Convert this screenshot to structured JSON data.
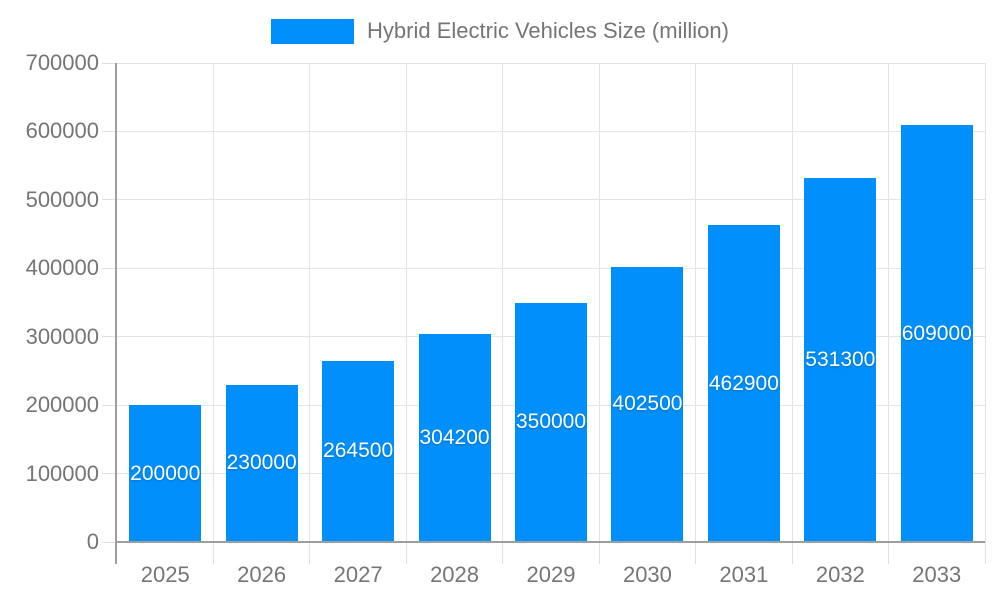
{
  "legend": {
    "label": "Hybrid Electric Vehicles Size (million)"
  },
  "chart_data": {
    "type": "bar",
    "title": "Hybrid Electric Vehicles Size (million)",
    "xlabel": "",
    "ylabel": "",
    "categories": [
      "2025",
      "2026",
      "2027",
      "2028",
      "2029",
      "2030",
      "2031",
      "2032",
      "2033"
    ],
    "values": [
      200000,
      230000,
      264500,
      304200,
      350000,
      402500,
      462900,
      531300,
      609000
    ],
    "value_labels": [
      "200000",
      "230000",
      "264500",
      "304200",
      "350000",
      "402500",
      "462900",
      "531300",
      "609000"
    ],
    "ylim": [
      0,
      700000
    ],
    "ytick_interval": 100000,
    "ytick_labels": [
      "0",
      "100000",
      "200000",
      "300000",
      "400000",
      "500000",
      "600000",
      "700000"
    ],
    "grid": true,
    "legend_position": "top",
    "colors": {
      "bar": "#008FFB",
      "value_label_text": "#ffffff",
      "axis_text": "#757575",
      "grid_line": "#e4e4e4",
      "axis_line": "#9e9e9e",
      "background": "#ffffff"
    }
  }
}
